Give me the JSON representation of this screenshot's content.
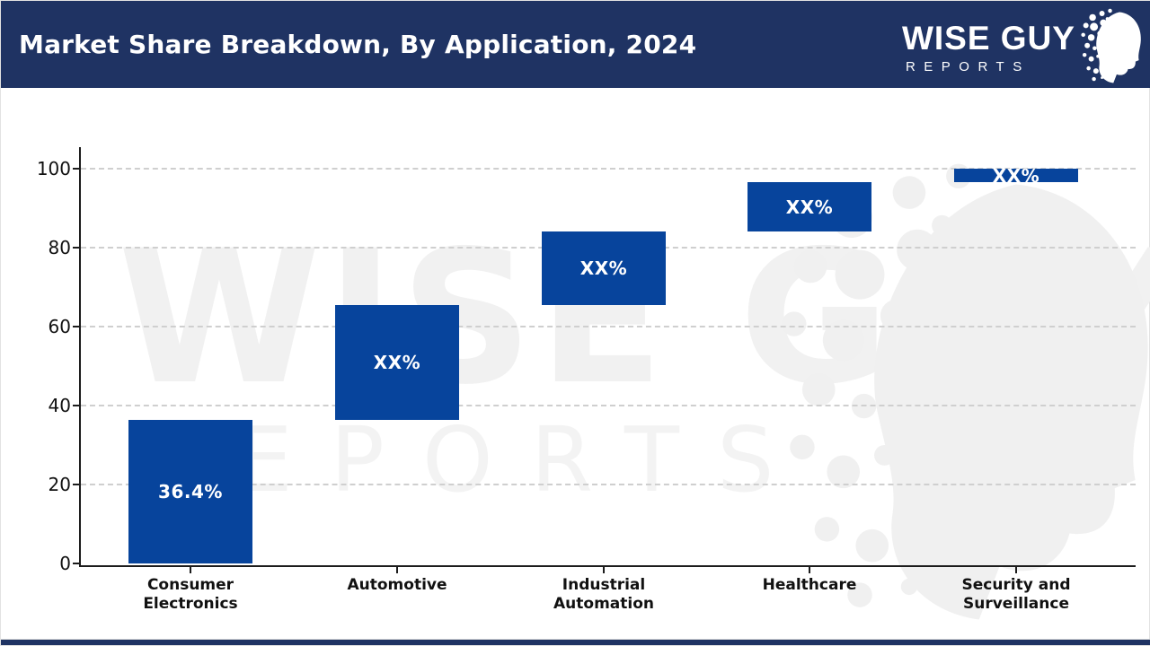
{
  "header": {
    "title": "Market Share Breakdown, By Application, 2024",
    "logo": {
      "line1": "WISE GUY",
      "line2": "REPORTS"
    }
  },
  "watermark": {
    "line1": "WISE GUY",
    "line2": "REPORTS"
  },
  "colors": {
    "header_navy": "#1f3363",
    "bar_blue": "#07449c",
    "gridline_gray": "#cfcfcf",
    "watermark_gray": "#f1f1f1",
    "axis_black": "#1c1c1c"
  },
  "chart_data": {
    "type": "bar",
    "subtype": "waterfall",
    "title": "Market Share Breakdown, By Application, 2024",
    "xlabel": "",
    "ylabel": "",
    "ylim": [
      0,
      100
    ],
    "yticks": [
      "0",
      "20",
      "40",
      "60",
      "80",
      "100"
    ],
    "ytick_values": [
      0,
      20,
      40,
      60,
      80,
      100
    ],
    "grid": "horizontal-dashed",
    "legend": "none",
    "categories": [
      "Consumer Electronics",
      "Automotive",
      "Industrial Automation",
      "Healthcare",
      "Security and Surveillance"
    ],
    "values": [
      36.4,
      29.1,
      18.5,
      12.5,
      3.5
    ],
    "bars": [
      {
        "category_lines": [
          "Consumer",
          "Electronics"
        ],
        "start": 0,
        "end": 36.4,
        "segment": 36.4,
        "label": "36.4%"
      },
      {
        "category_lines": [
          "Automotive"
        ],
        "start": 36.4,
        "end": 65.5,
        "segment": 29.1,
        "label": "XX%"
      },
      {
        "category_lines": [
          "Industrial",
          "Automation"
        ],
        "start": 65.5,
        "end": 84.0,
        "segment": 18.5,
        "label": "XX%"
      },
      {
        "category_lines": [
          "Healthcare"
        ],
        "start": 84.0,
        "end": 96.5,
        "segment": 12.5,
        "label": "XX%"
      },
      {
        "category_lines": [
          "Security and",
          "Surveillance"
        ],
        "start": 96.5,
        "end": 100,
        "segment": 3.5,
        "label": "XX%"
      }
    ]
  }
}
